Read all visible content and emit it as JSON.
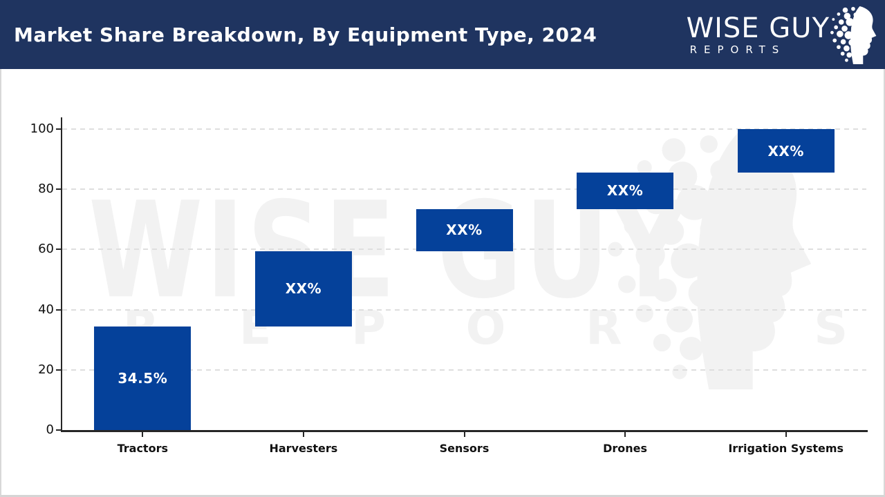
{
  "header": {
    "title": "Market Share Breakdown, By Equipment Type, 2024",
    "logo": {
      "brand_line1": "WISE GUY",
      "brand_line2": "REPORTS"
    }
  },
  "watermark": {
    "line1": "WISE GUY",
    "line2": "R E P O R T S"
  },
  "chart_data": {
    "type": "bar",
    "variant": "waterfall",
    "title": "Market Share Breakdown, By Equipment Type, 2024",
    "categories": [
      "Tractors",
      "Harvesters",
      "Sensors",
      "Drones",
      "Irrigation Systems"
    ],
    "segments": [
      {
        "category": "Tractors",
        "start": 0,
        "end": 34.5,
        "label": "34.5%"
      },
      {
        "category": "Harvesters",
        "start": 34.5,
        "end": 59.5,
        "label": "XX%"
      },
      {
        "category": "Sensors",
        "start": 59.5,
        "end": 73.5,
        "label": "XX%"
      },
      {
        "category": "Drones",
        "start": 73.5,
        "end": 85.5,
        "label": "XX%"
      },
      {
        "category": "Irrigation Systems",
        "start": 85.5,
        "end": 100,
        "label": "XX%"
      }
    ],
    "yticks": [
      0,
      20,
      40,
      60,
      80,
      100
    ],
    "ylim": [
      0,
      104
    ],
    "xlabel": "",
    "ylabel": "",
    "legend": "none",
    "grid": "horizontal-dashed",
    "bar_color": "#05419A",
    "bar_label_color": "#FFFFFF"
  },
  "colors": {
    "header_bg": "#1F3460",
    "bar": "#05419A",
    "axis": "#262626",
    "gridline": "#DEDEDE",
    "watermark": "#F2F2F2",
    "page_border": "#D8D8D8"
  }
}
